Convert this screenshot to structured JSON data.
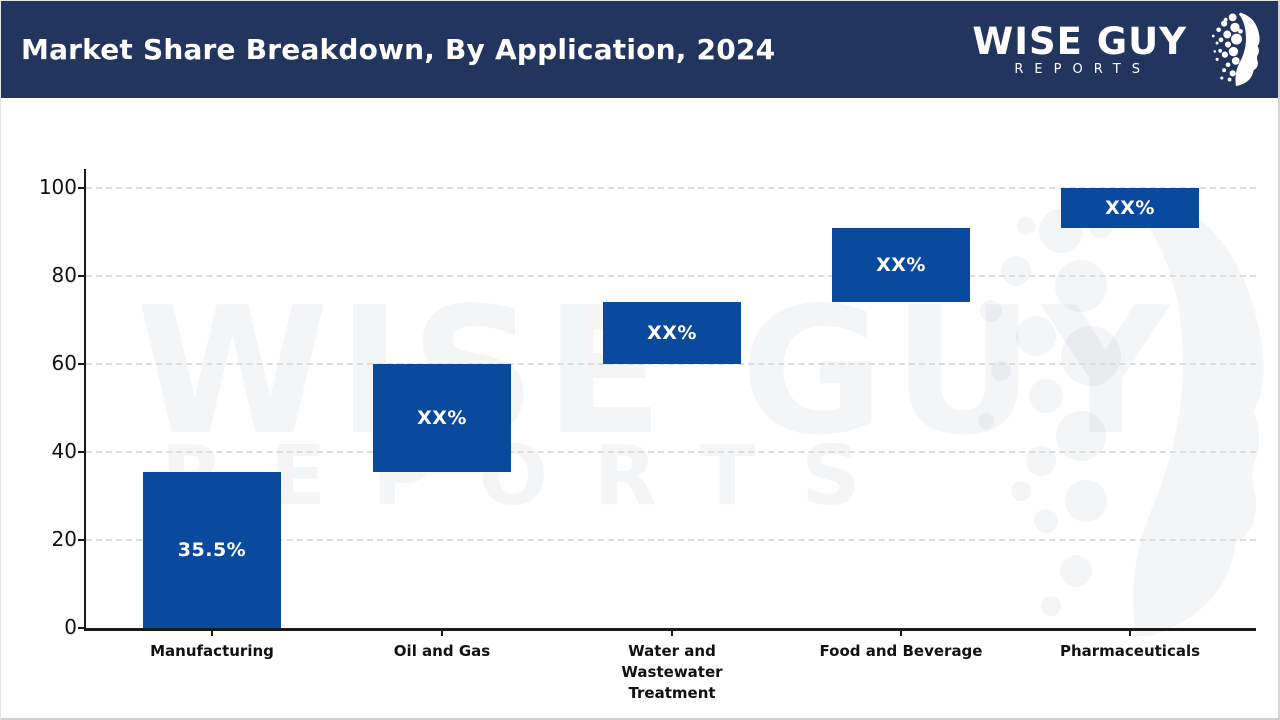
{
  "header": {
    "title": "Market Share Breakdown, By Application, 2024",
    "logo": {
      "line1": "WISE GUY",
      "line2": "REPORTS"
    }
  },
  "watermark": {
    "line1": "WISE GUY",
    "line2": "REPORTS"
  },
  "chart_data": {
    "type": "bar",
    "subtype": "waterfall",
    "title": "Market Share Breakdown, By Application, 2024",
    "xlabel": "",
    "ylabel": "",
    "categories": [
      "Manufacturing",
      "Oil and Gas",
      "Water and\nWastewater\nTreatment",
      "Food and Beverage",
      "Pharmaceuticals"
    ],
    "segments": [
      {
        "category": "Manufacturing",
        "start": 0,
        "end": 35.5,
        "label": "35.5%"
      },
      {
        "category": "Oil and Gas",
        "start": 35.5,
        "end": 60,
        "label": "XX%"
      },
      {
        "category": "Water and Wastewater Treatment",
        "start": 60,
        "end": 74,
        "label": "XX%"
      },
      {
        "category": "Food and Beverage",
        "start": 74,
        "end": 91,
        "label": "XX%"
      },
      {
        "category": "Pharmaceuticals",
        "start": 91,
        "end": 100,
        "label": "XX%"
      }
    ],
    "ylim": [
      0,
      100
    ],
    "yticks": [
      0,
      20,
      40,
      60,
      80,
      100
    ],
    "grid": true,
    "legend": false,
    "bar_color": "#0A4A9E",
    "bar_label_color": "#FFFFFF"
  },
  "colors": {
    "header_bg": "#21355F",
    "bar_blue": "#0A4A9E",
    "grid_gray": "#DCDCDC",
    "axis_black": "#1A1A1A"
  }
}
